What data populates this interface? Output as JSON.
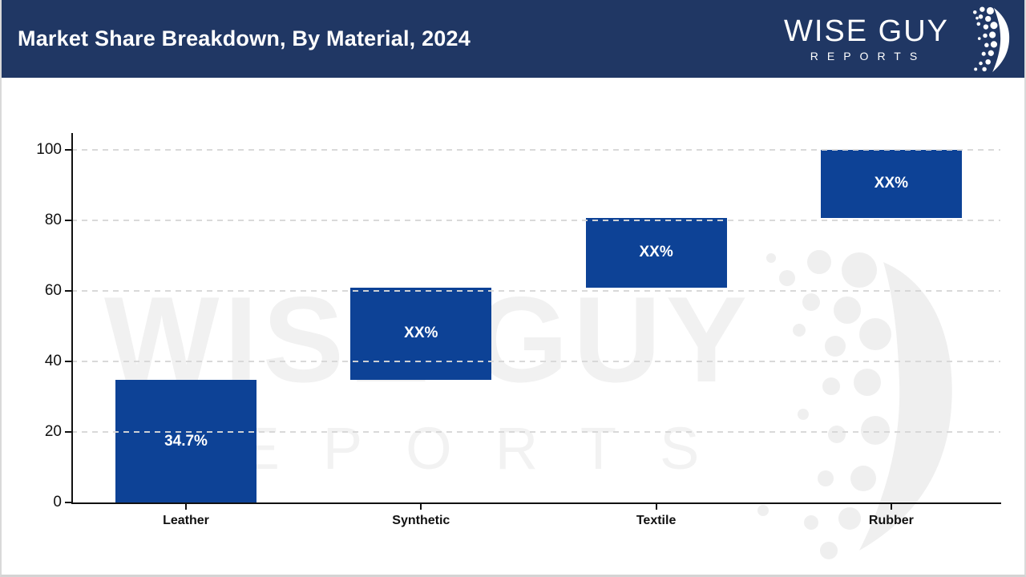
{
  "header": {
    "title": "Market Share Breakdown, By Material, 2024",
    "bg_color": "#203764",
    "logo": {
      "wordmark": "WISE GUY",
      "subtext": "REPORTS"
    }
  },
  "watermark": {
    "line1": "WISE GUY",
    "line2": "REPORTS"
  },
  "chart_data": {
    "type": "bar",
    "subtype": "waterfall",
    "title": "Market Share Breakdown, By Material, 2024",
    "categories": [
      "Leather",
      "Synthetic",
      "Textile",
      "Rubber"
    ],
    "segments": [
      {
        "category": "Leather",
        "start": 0,
        "end": 34.7,
        "value_label": "34.7%"
      },
      {
        "category": "Synthetic",
        "start": 34.7,
        "end": 61.0,
        "value_label": "XX%"
      },
      {
        "category": "Textile",
        "start": 61.0,
        "end": 80.7,
        "value_label": "XX%"
      },
      {
        "category": "Rubber",
        "start": 80.7,
        "end": 100.0,
        "value_label": "XX%"
      }
    ],
    "yticks": [
      0,
      20,
      40,
      60,
      80,
      100
    ],
    "ylim": [
      0,
      104
    ],
    "xlabel": "",
    "ylabel": "",
    "bar_color": "#0d4296",
    "grid": "horizontal-dashed",
    "gridline_color": "#d7d7d7",
    "axis_color": "#111111",
    "legend": "none"
  }
}
